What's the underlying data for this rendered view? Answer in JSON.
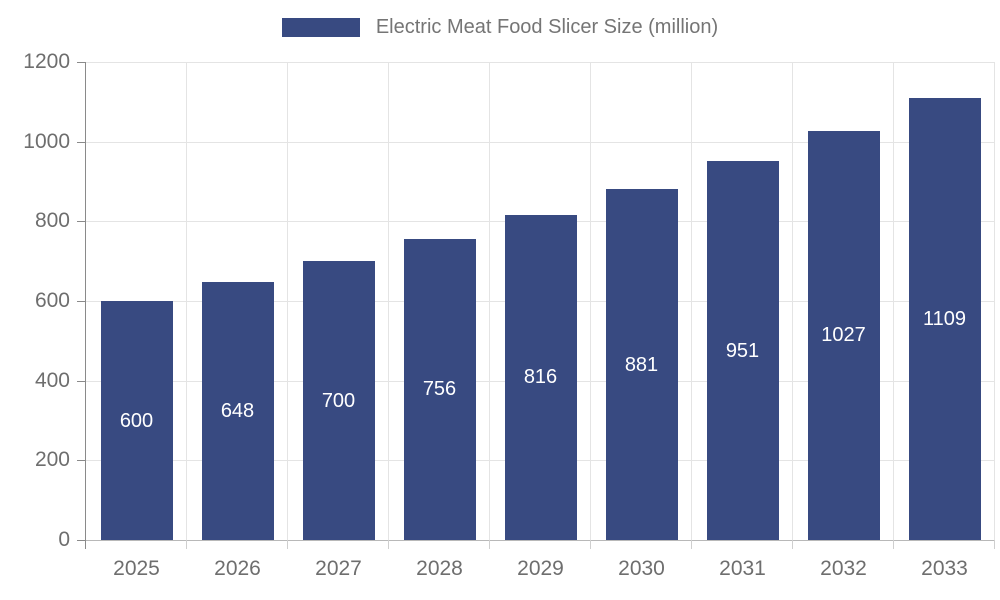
{
  "legend": {
    "label": "Electric Meat Food Slicer Size (million)"
  },
  "colors": {
    "bar": "#384a81",
    "bar_label": "#ffffff",
    "legend_text": "#757575",
    "axis_text": "#6e6e6e",
    "grid": "#e4e4e4",
    "y_axis_line": "#8a8a8a",
    "x_axis_line": "#b8b8b8",
    "x_tick": "#cfcfcf"
  },
  "chart_data": {
    "type": "bar",
    "title": "Electric Meat Food Slicer Size (million)",
    "categories": [
      "2025",
      "2026",
      "2027",
      "2028",
      "2029",
      "2030",
      "2031",
      "2032",
      "2033"
    ],
    "values": [
      600,
      648,
      700,
      756,
      816,
      881,
      951,
      1027,
      1109
    ],
    "xlabel": "",
    "ylabel": "",
    "ylim": [
      0,
      1200
    ],
    "yticks": [
      0,
      200,
      400,
      600,
      800,
      1000,
      1200
    ],
    "grid": true,
    "legend_position": "top-center",
    "bar_labels_shown": true
  }
}
